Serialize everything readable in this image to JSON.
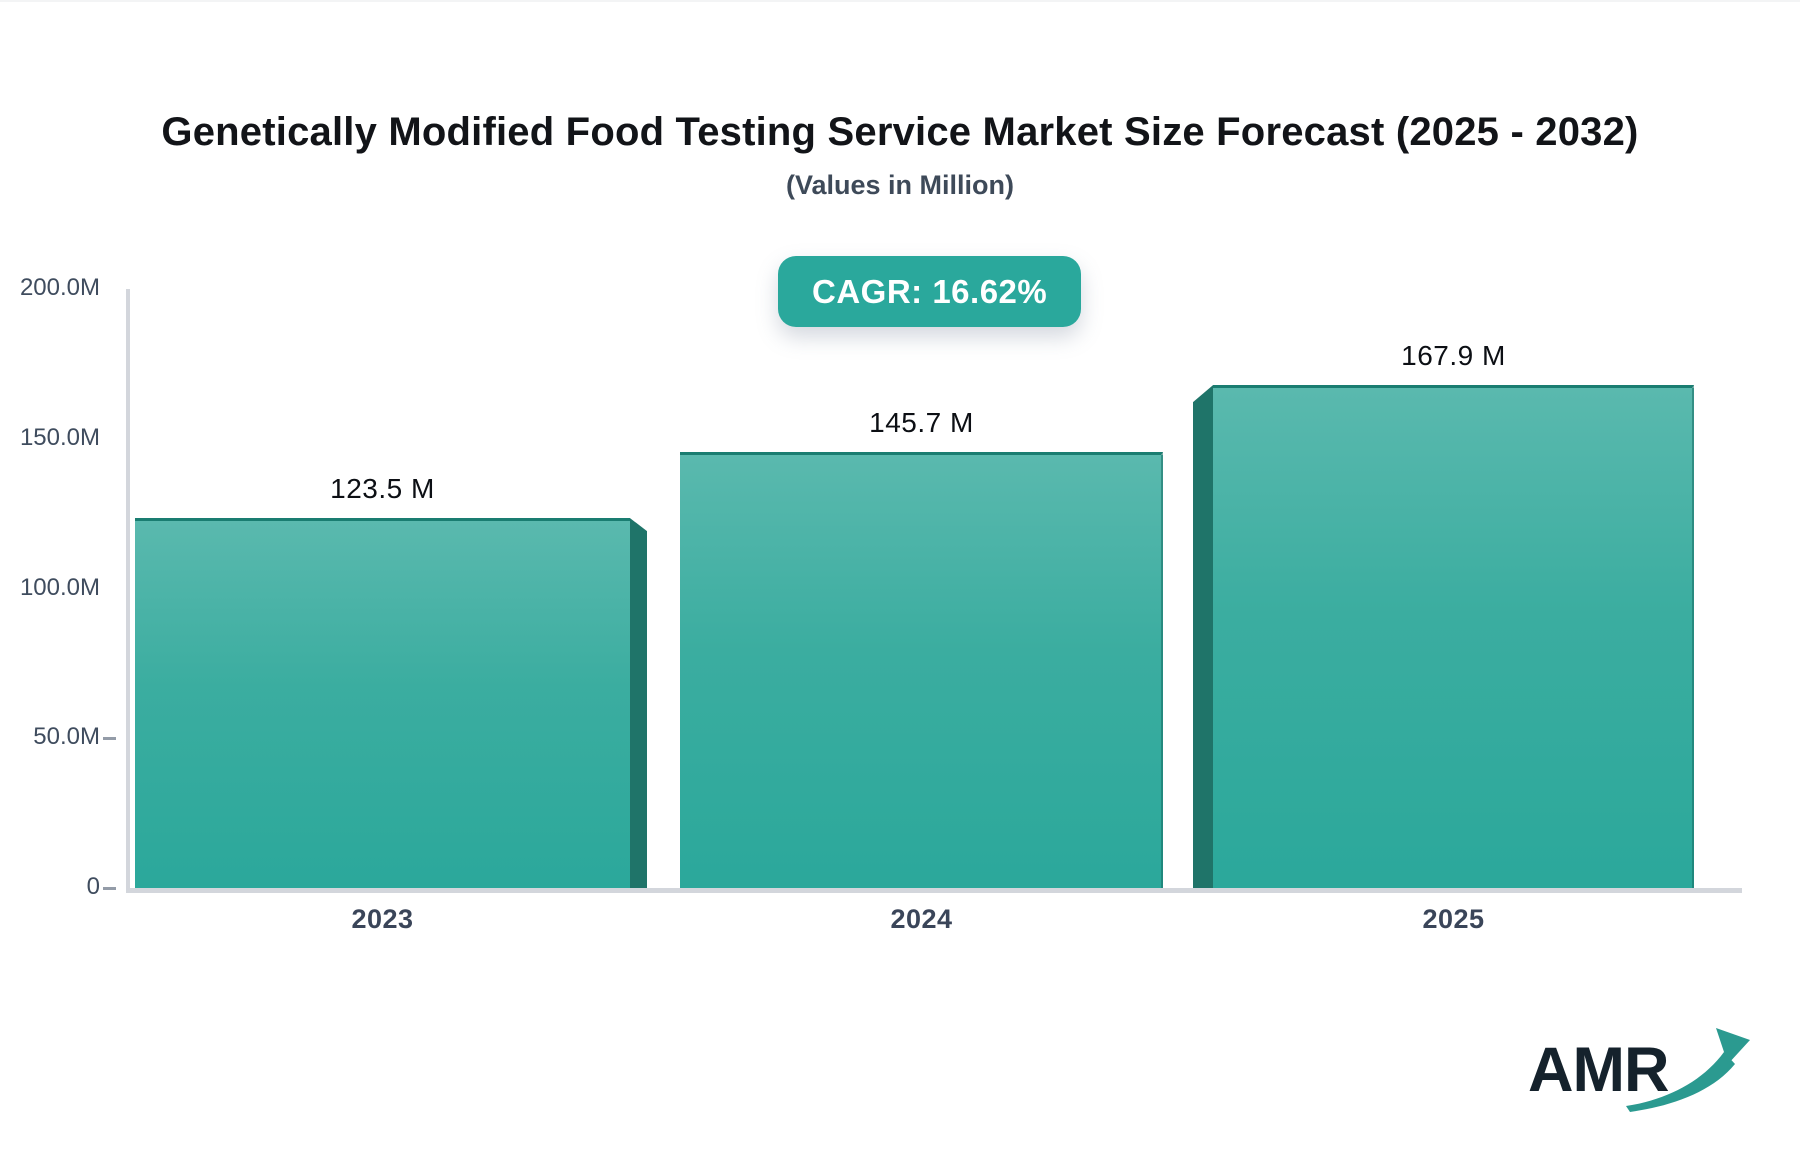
{
  "page": {
    "title": "Genetically Modified Food Testing Service Market Size Forecast (2025 - 2032)",
    "subtitle": "(Values in Million)",
    "cagr_badge_label": "CAGR: 16.62%",
    "logo_text": "AMR"
  },
  "chart_data": {
    "type": "bar",
    "title": "Genetically Modified Food Testing Service Market Size Forecast (2025 - 2032)",
    "subtitle": "(Values in Million)",
    "categories": [
      "2023",
      "2024",
      "2025"
    ],
    "values": [
      123.5,
      145.7,
      167.9
    ],
    "value_labels": [
      "123.5 M",
      "145.7 M",
      "167.9 M"
    ],
    "cagr_pct": 16.62,
    "unit": "Million",
    "xlabel": "",
    "ylabel": "",
    "ylim": [
      0,
      200
    ],
    "y_ticks": [
      {
        "label": "200.0M",
        "value": 200,
        "dash": false
      },
      {
        "label": "150.0M",
        "value": 150,
        "dash": false
      },
      {
        "label": "100.0M",
        "value": 100,
        "dash": false
      },
      {
        "label": "50.0M",
        "value": 50,
        "dash": true
      },
      {
        "label": "0",
        "value": 0,
        "dash": true
      }
    ],
    "legend": "none",
    "grid": "off",
    "colors": {
      "bar_gradient_top": "#5AB9AE",
      "bar_gradient_bottom": "#2BA89B",
      "bar_side_face": "#1F7469",
      "bar_top_edge": "#1A7D71",
      "badge_background": "#2AA89C",
      "axis_line": "#D3D6DC",
      "label_text": "#3A4559"
    }
  }
}
